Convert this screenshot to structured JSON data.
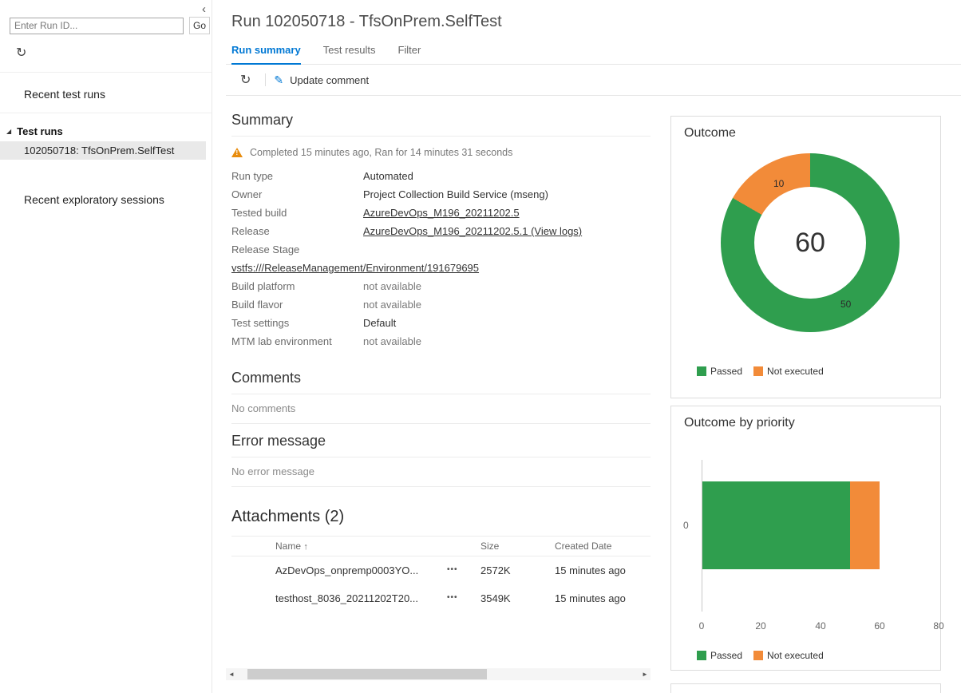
{
  "colors": {
    "accent": "#0078d4",
    "passed_green": "#2f9e4e",
    "not_executed_orange": "#f28b39",
    "warning_orange": "#e88c0d"
  },
  "icons": {
    "collapse": "‹",
    "refresh": "↻",
    "pencil": "✎",
    "tree_expander": "◢",
    "sort_asc": "↑",
    "ellipsis": "•••",
    "scroll_left": "◄",
    "scroll_right": "►"
  },
  "sidebar": {
    "run_id_placeholder": "Enter Run ID...",
    "go_label": "Go",
    "recent_test_runs_label": "Recent test runs",
    "tree_header_label": "Test runs",
    "selected_run_label": "102050718: TfsOnPrem.SelfTest",
    "recent_exploratory_label": "Recent exploratory sessions"
  },
  "header": {
    "title": "Run 102050718 - TfsOnPrem.SelfTest",
    "tabs": [
      {
        "label": "Run summary"
      },
      {
        "label": "Test results"
      },
      {
        "label": "Filter"
      }
    ],
    "toolbar": {
      "update_comment_label": "Update comment"
    }
  },
  "summary": {
    "heading": "Summary",
    "status_text": "Completed 15 minutes ago, Ran for 14 minutes 31 seconds",
    "fields": [
      {
        "label": "Run type",
        "value": "Automated"
      },
      {
        "label": "Owner",
        "value": "Project Collection Build Service (mseng)"
      },
      {
        "label": "Tested build",
        "value": "AzureDevOps_M196_20211202.5"
      },
      {
        "label": "Release",
        "value": "AzureDevOps_M196_20211202.5.1 (View logs)"
      },
      {
        "label": "Release Stage",
        "value": "vstfs:///ReleaseManagement/Environment/191679695"
      },
      {
        "label": "Build platform",
        "value": "not available"
      },
      {
        "label": "Build flavor",
        "value": "not available"
      },
      {
        "label": "Test settings",
        "value": "Default"
      },
      {
        "label": "MTM lab environment",
        "value": "not available"
      }
    ]
  },
  "comments": {
    "heading": "Comments",
    "empty_text": "No comments"
  },
  "error": {
    "heading": "Error message",
    "empty_text": "No error message"
  },
  "attachments": {
    "heading": "Attachments (2)",
    "columns": {
      "name": "Name",
      "size": "Size",
      "created": "Created Date"
    },
    "rows": [
      {
        "name": "AzDevOps_onpremp0003YO...",
        "size": "2572K",
        "created": "15 minutes ago"
      },
      {
        "name": "testhost_8036_20211202T20...",
        "size": "3549K",
        "created": "15 minutes ago"
      }
    ]
  },
  "chart_data": [
    {
      "type": "pie",
      "variant": "donut",
      "title": "Outcome",
      "total": 60,
      "series": [
        {
          "name": "Passed",
          "value": 50,
          "color": "#2f9e4e"
        },
        {
          "name": "Not executed",
          "value": 10,
          "color": "#f28b39"
        }
      ],
      "legend_position": "bottom"
    },
    {
      "type": "bar",
      "variant": "horizontal-stacked",
      "title": "Outcome by priority",
      "categories": [
        "0"
      ],
      "xticks": [
        "0",
        "20",
        "40",
        "60",
        "80"
      ],
      "xlim": [
        0,
        80
      ],
      "series": [
        {
          "name": "Passed",
          "value": 50,
          "color": "#2f9e4e"
        },
        {
          "name": "Not executed",
          "value": 10,
          "color": "#f28b39"
        }
      ],
      "legend_position": "bottom"
    }
  ]
}
